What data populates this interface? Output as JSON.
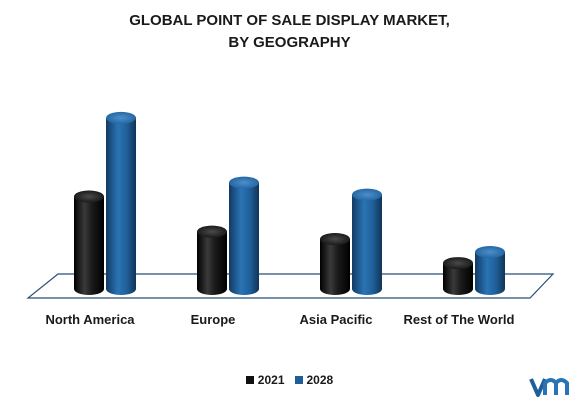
{
  "chart_data": {
    "type": "bar",
    "title": "GLOBAL POINT OF SALE DISPLAY MARKET, BY GEOGRAPHY",
    "title_lines": [
      "GLOBAL POINT OF SALE DISPLAY MARKET,",
      "BY GEOGRAPHY"
    ],
    "categories": [
      "North America",
      "Europe",
      "Asia Pacific",
      "Rest of The World"
    ],
    "series": [
      {
        "name": "2021",
        "color": "#111111",
        "values": [
          100,
          62,
          54,
          28
        ]
      },
      {
        "name": "2028",
        "color": "#1f5f99",
        "values": [
          185,
          115,
          102,
          40
        ]
      }
    ],
    "ylim": [
      0,
      200
    ],
    "grid": false,
    "legend": "bottom-center",
    "three_d": true
  },
  "logo": {
    "icon": "vmr-logo-icon"
  }
}
